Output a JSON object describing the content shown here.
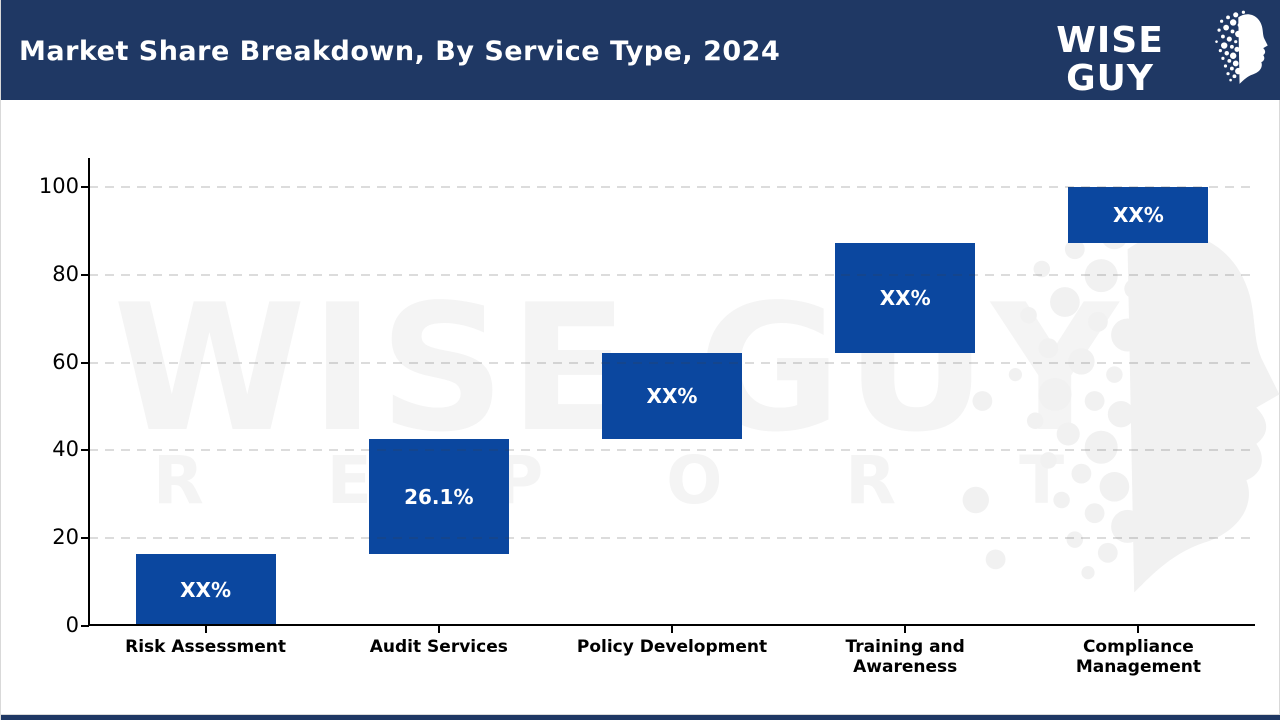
{
  "header": {
    "title": "Market Share Breakdown, By Service Type, 2024",
    "logo": {
      "line1": "WISE GUY",
      "line2": "R E P O R T S"
    }
  },
  "watermark": {
    "line1": "WISE GUY",
    "line2": "R E P O R T S"
  },
  "chart_data": {
    "type": "bar",
    "subtype": "waterfall",
    "title": "Market Share Breakdown, By Service Type, 2024",
    "xlabel": "",
    "ylabel": "",
    "ylim": [
      0,
      100
    ],
    "yticks": [
      0,
      20,
      40,
      60,
      80,
      100
    ],
    "grid": true,
    "bar_color": "#0b479f",
    "label_color": "#ffffff",
    "segments": [
      {
        "category": "Risk Assessment",
        "start": 0,
        "end": 16.4,
        "label": "XX%"
      },
      {
        "category": "Audit Services",
        "start": 16.4,
        "end": 42.5,
        "label": "26.1%"
      },
      {
        "category": "Policy Development",
        "start": 42.5,
        "end": 62.2,
        "label": "XX%"
      },
      {
        "category": "Training and Awareness",
        "start": 62.2,
        "end": 87.3,
        "label": "XX%"
      },
      {
        "category": "Compliance Management",
        "start": 87.3,
        "end": 100,
        "label": "XX%"
      }
    ],
    "tick_labels": [
      [
        "Risk Assessment"
      ],
      [
        "Audit Services"
      ],
      [
        "Policy Development"
      ],
      [
        "Training and",
        "Awareness"
      ],
      [
        "Compliance",
        "Management"
      ]
    ]
  }
}
